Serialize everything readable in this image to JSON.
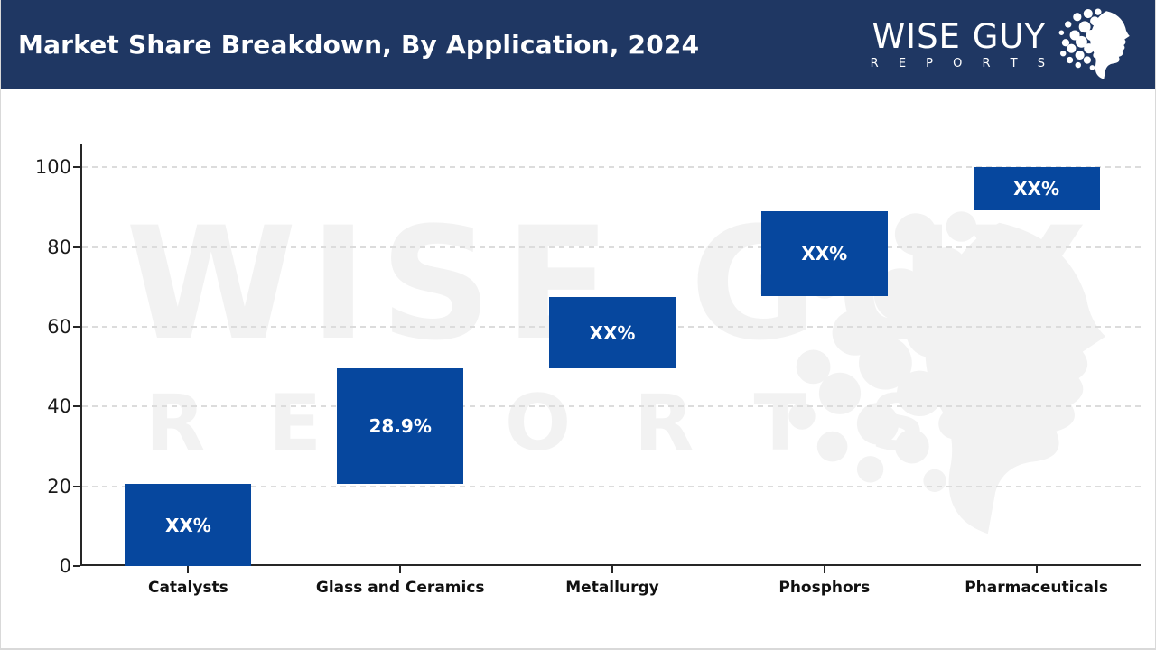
{
  "header": {
    "title": "Market Share Breakdown, By Application, 2024",
    "bg_color": "#1f3763",
    "logo": {
      "line1": "WISE GUY",
      "line2": "R E P O R T S"
    }
  },
  "watermark": {
    "line1": "WISE GUY",
    "line2": "REPORTS"
  },
  "chart_data": {
    "type": "bar",
    "subtype": "waterfall",
    "title": "Market Share Breakdown, By Application, 2024",
    "categories": [
      "Catalysts",
      "Glass and Ceramics",
      "Metallurgy",
      "Phosphors",
      "Pharmaceuticals"
    ],
    "segments": [
      {
        "category": "Catalysts",
        "start": 0,
        "end": 20.5,
        "label": "XX%"
      },
      {
        "category": "Glass and Ceramics",
        "start": 20.6,
        "end": 49.5,
        "label": "28.9%"
      },
      {
        "category": "Metallurgy",
        "start": 49.5,
        "end": 67.5,
        "label": "XX%"
      },
      {
        "category": "Phosphors",
        "start": 67.6,
        "end": 89.0,
        "label": "XX%"
      },
      {
        "category": "Pharmaceuticals",
        "start": 89.1,
        "end": 100.0,
        "label": "XX%"
      }
    ],
    "yticks": [
      0,
      20,
      40,
      60,
      80,
      100
    ],
    "ylim": [
      0,
      105.7
    ],
    "xlabel": "",
    "ylabel": "",
    "grid": true,
    "grid_style": "dashed",
    "legend": "none",
    "bar_color": "#06479e",
    "bar_label_color": "#ffffff",
    "axis_color": "#262626",
    "grid_color": "#dcdcdc"
  }
}
